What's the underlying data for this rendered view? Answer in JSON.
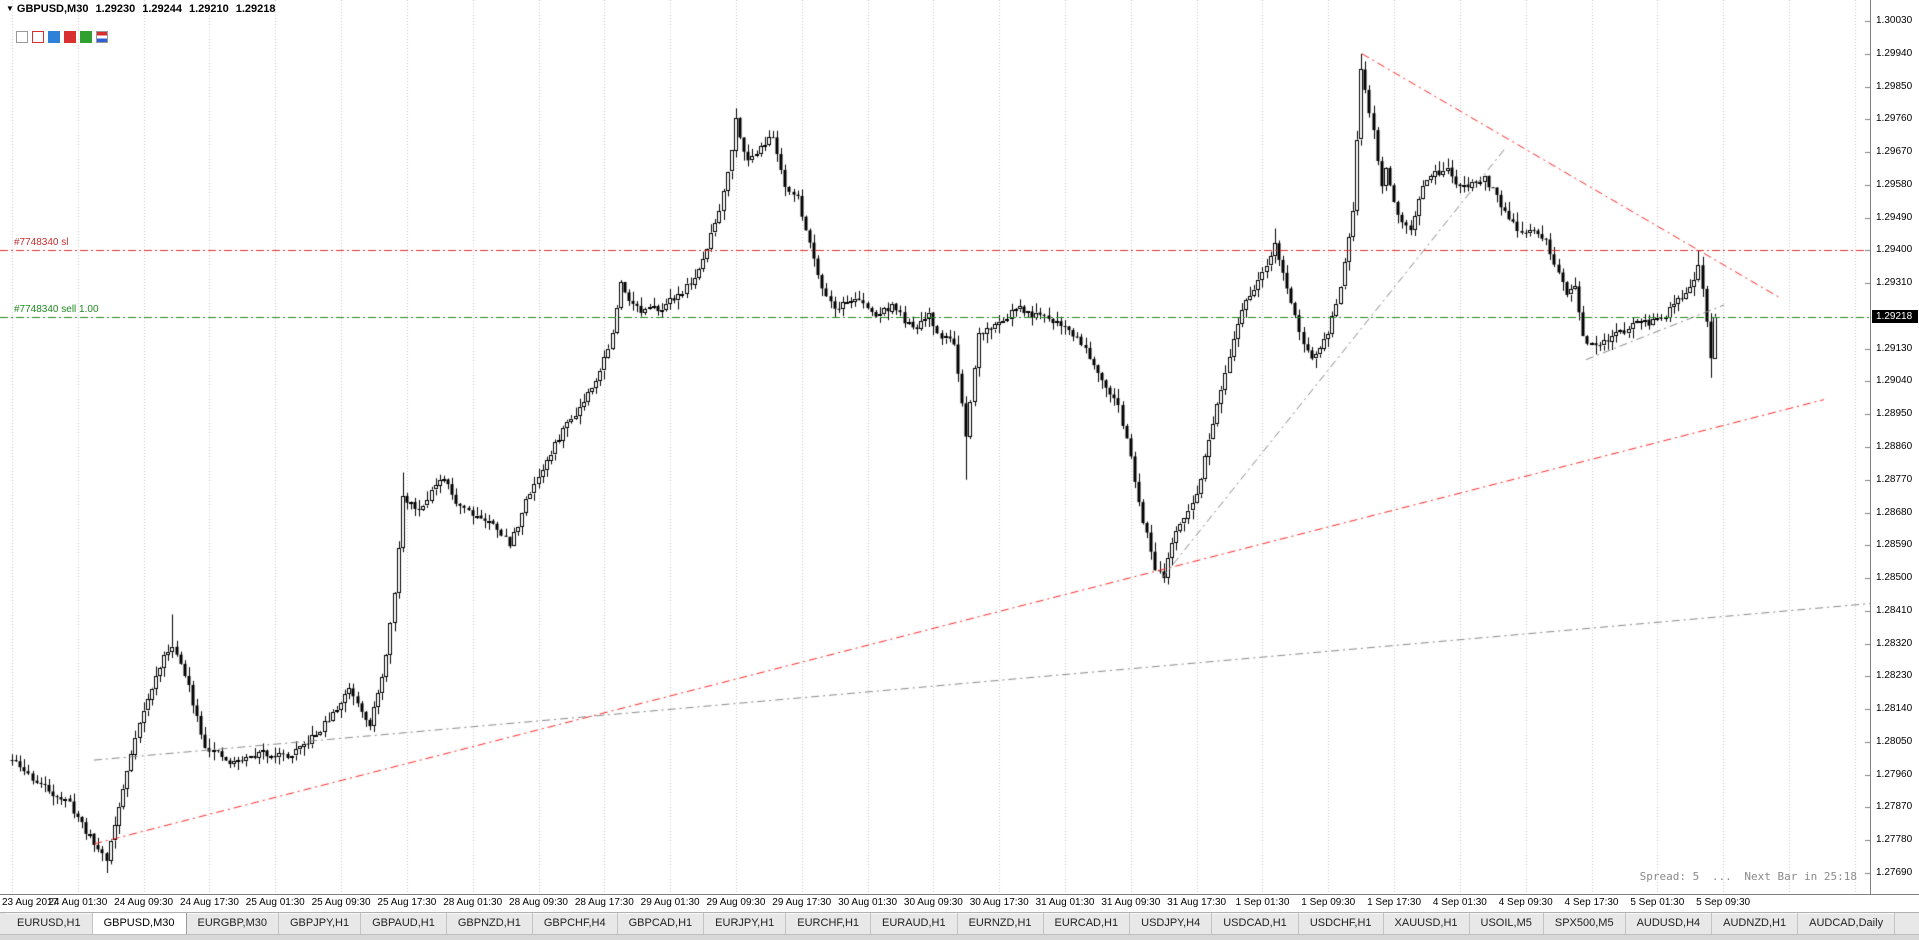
{
  "header": {
    "one_click_arrow_glyph": "▼",
    "symbol_period": "GBPUSD,M30",
    "open": "1.29230",
    "high": "1.29244",
    "low": "1.29210",
    "close": "1.29218"
  },
  "toolbar": {
    "swatches": [
      {
        "name": "white-empty",
        "fill": "#ffffff",
        "border": "#9a9a9a"
      },
      {
        "name": "red-outline",
        "fill": "#ffffff",
        "border": "#d83030"
      },
      {
        "name": "blue",
        "fill": "#2f80d8",
        "border": "#2f80d8"
      },
      {
        "name": "red",
        "fill": "#d83030",
        "border": "#d83030"
      },
      {
        "name": "green",
        "fill": "#30a030",
        "border": "#30a030"
      },
      {
        "name": "flag",
        "fill": "flag",
        "border": "#9a9a9a"
      }
    ]
  },
  "orders": {
    "sl_line": {
      "label": "#7748340 sl",
      "price": 1.294,
      "color": "#e03030",
      "dash": [
        8,
        3,
        2,
        3
      ]
    },
    "sell_line": {
      "label": "#7748340 sell 1.00",
      "price": 1.29218,
      "color": "#1f8a1f",
      "dash": [
        8,
        3,
        2,
        3
      ]
    }
  },
  "status": {
    "spread_label": "Spread: 5",
    "separator": "...",
    "next_bar_label": "Next Bar in 25:18"
  },
  "price_axis": {
    "max": 1.3003,
    "min": 1.2769,
    "step": 0.0009,
    "current": "1.29218",
    "labels": [
      "1.30030",
      "1.29940",
      "1.29850",
      "1.29760",
      "1.29670",
      "1.29580",
      "1.29490",
      "1.29400",
      "1.29310",
      "1.29130",
      "1.29040",
      "1.28950",
      "1.28860",
      "1.28770",
      "1.28680",
      "1.28590",
      "1.28500",
      "1.28410",
      "1.28320",
      "1.28230",
      "1.28140",
      "1.28050",
      "1.27960",
      "1.27870",
      "1.27780",
      "1.27690"
    ]
  },
  "time_axis": {
    "labels": [
      "23 Aug 2017",
      "24 Aug 01:30",
      "24 Aug 09:30",
      "24 Aug 17:30",
      "25 Aug 01:30",
      "25 Aug 09:30",
      "25 Aug 17:30",
      "28 Aug 01:30",
      "28 Aug 09:30",
      "28 Aug 17:30",
      "29 Aug 01:30",
      "29 Aug 09:30",
      "29 Aug 17:30",
      "30 Aug 01:30",
      "30 Aug 09:30",
      "30 Aug 17:30",
      "31 Aug 01:30",
      "31 Aug 09:30",
      "31 Aug 17:30",
      "1 Sep 01:30",
      "1 Sep 09:30",
      "1 Sep 17:30",
      "4 Sep 01:30",
      "4 Sep 09:30",
      "4 Sep 17:30",
      "5 Sep 01:30",
      "5 Sep 09:30"
    ]
  },
  "tabs": {
    "active_index": 1,
    "items": [
      "EURUSD,H1",
      "GBPUSD,M30",
      "EURGBP,M30",
      "GBPJPY,H1",
      "GBPAUD,H1",
      "GBPNZD,H1",
      "GBPCHF,H4",
      "GBPCAD,H1",
      "EURJPY,H1",
      "EURCHF,H1",
      "EURAUD,H1",
      "EURNZD,H1",
      "EURCAD,H1",
      "USDJPY,H4",
      "USDCAD,H1",
      "USDCHF,H1",
      "XAUUSD,H1",
      "USOIL,M5",
      "SPX500,M5",
      "AUDUSD,H4",
      "AUDNZD,H1",
      "AUDCAD,Daily"
    ]
  },
  "chart_data": {
    "type": "candlestick",
    "symbol": "GBPUSD",
    "timeframe": "M30",
    "bars": 415,
    "bars_per_time_gridline": 16,
    "last_close": 1.29218,
    "ylim": [
      1.2769,
      1.3003
    ],
    "grid": {
      "vertical_dotted": true,
      "horizontal": false
    },
    "close_path_waypoints": [
      [
        0,
        1.28
      ],
      [
        6,
        1.2794
      ],
      [
        14,
        1.2788
      ],
      [
        20,
        1.2777
      ],
      [
        23,
        1.2773
      ],
      [
        26,
        1.2787
      ],
      [
        30,
        1.2807
      ],
      [
        36,
        1.2826
      ],
      [
        39,
        1.2832
      ],
      [
        43,
        1.282
      ],
      [
        47,
        1.2804
      ],
      [
        53,
        1.2799
      ],
      [
        61,
        1.2802
      ],
      [
        68,
        1.2801
      ],
      [
        74,
        1.2807
      ],
      [
        79,
        1.2814
      ],
      [
        82,
        1.282
      ],
      [
        87,
        1.281
      ],
      [
        90,
        1.2822
      ],
      [
        93,
        1.2845
      ],
      [
        95,
        1.2872
      ],
      [
        99,
        1.2869
      ],
      [
        102,
        1.2874
      ],
      [
        105,
        1.2877
      ],
      [
        108,
        1.2871
      ],
      [
        112,
        1.2868
      ],
      [
        118,
        1.2864
      ],
      [
        121,
        1.2859
      ],
      [
        126,
        1.2874
      ],
      [
        131,
        1.2884
      ],
      [
        134,
        1.2891
      ],
      [
        138,
        1.2897
      ],
      [
        143,
        1.2907
      ],
      [
        146,
        1.2917
      ],
      [
        148,
        1.2931
      ],
      [
        150,
        1.2927
      ],
      [
        153,
        1.2923
      ],
      [
        159,
        1.2925
      ],
      [
        164,
        1.293
      ],
      [
        167,
        1.2934
      ],
      [
        172,
        1.2951
      ],
      [
        175,
        1.2968
      ],
      [
        176,
        1.2976
      ],
      [
        179,
        1.2964
      ],
      [
        182,
        1.2969
      ],
      [
        185,
        1.2971
      ],
      [
        188,
        1.2958
      ],
      [
        191,
        1.2954
      ],
      [
        194,
        1.2942
      ],
      [
        197,
        1.293
      ],
      [
        200,
        1.2924
      ],
      [
        205,
        1.2927
      ],
      [
        210,
        1.2922
      ],
      [
        214,
        1.2925
      ],
      [
        219,
        1.2918
      ],
      [
        223,
        1.2922
      ],
      [
        225,
        1.2917
      ],
      [
        229,
        1.2915
      ],
      [
        232,
        1.2888
      ],
      [
        235,
        1.2917
      ],
      [
        240,
        1.292
      ],
      [
        244,
        1.2924
      ],
      [
        249,
        1.2922
      ],
      [
        255,
        1.292
      ],
      [
        260,
        1.2915
      ],
      [
        264,
        1.2907
      ],
      [
        269,
        1.2897
      ],
      [
        272,
        1.2883
      ],
      [
        275,
        1.2866
      ],
      [
        278,
        1.2853
      ],
      [
        280,
        1.2851
      ],
      [
        282,
        1.286
      ],
      [
        285,
        1.2866
      ],
      [
        288,
        1.2873
      ],
      [
        290,
        1.2883
      ],
      [
        293,
        1.2897
      ],
      [
        296,
        1.291
      ],
      [
        299,
        1.2924
      ],
      [
        302,
        1.293
      ],
      [
        305,
        1.2935
      ],
      [
        307,
        1.2942
      ],
      [
        310,
        1.293
      ],
      [
        313,
        1.2917
      ],
      [
        316,
        1.291
      ],
      [
        318,
        1.2913
      ],
      [
        320,
        1.2917
      ],
      [
        323,
        1.293
      ],
      [
        326,
        1.295
      ],
      [
        328,
        1.299
      ],
      [
        330,
        1.2978
      ],
      [
        331,
        1.2974
      ],
      [
        333,
        1.2957
      ],
      [
        334,
        1.2962
      ],
      [
        337,
        1.295
      ],
      [
        340,
        1.2946
      ],
      [
        343,
        1.2957
      ],
      [
        346,
        1.2961
      ],
      [
        349,
        1.2962
      ],
      [
        352,
        1.2957
      ],
      [
        355,
        1.2958
      ],
      [
        358,
        1.296
      ],
      [
        361,
        1.2955
      ],
      [
        364,
        1.2948
      ],
      [
        367,
        1.2945
      ],
      [
        370,
        1.2946
      ],
      [
        373,
        1.2942
      ],
      [
        376,
        1.2933
      ],
      [
        378,
        1.2928
      ],
      [
        380,
        1.2931
      ],
      [
        382,
        1.2916
      ],
      [
        385,
        1.2913
      ],
      [
        389,
        1.2916
      ],
      [
        392,
        1.2918
      ],
      [
        395,
        1.2921
      ],
      [
        398,
        1.292
      ],
      [
        401,
        1.2921
      ],
      [
        404,
        1.2925
      ],
      [
        407,
        1.2928
      ],
      [
        410,
        1.2935
      ],
      [
        411,
        1.293
      ],
      [
        413,
        1.291
      ],
      [
        414,
        1.29218
      ]
    ],
    "wick_extremes": [
      [
        23,
        "low",
        1.2769
      ],
      [
        39,
        "high",
        1.284
      ],
      [
        95,
        "high",
        1.2879
      ],
      [
        176,
        "high",
        1.2979
      ],
      [
        232,
        "low",
        1.2877
      ],
      [
        280,
        "low",
        1.285
      ],
      [
        307,
        "high",
        1.2946
      ],
      [
        328,
        "high",
        1.2994
      ],
      [
        410,
        "high",
        1.294
      ],
      [
        413,
        "low",
        1.2905
      ]
    ],
    "trendlines": [
      {
        "name": "ascending-support-red",
        "color": "#ff2a2a",
        "dash": [
          8,
          4,
          2,
          4
        ],
        "b1": 20.0,
        "p1": 1.2777,
        "b2": 440.5,
        "p2": 1.2899
      },
      {
        "name": "descending-resistance-red",
        "color": "#ff2a2a",
        "dash": [
          8,
          4,
          2,
          4
        ],
        "b1": 328.2,
        "p1": 1.2994,
        "b2": 429.8,
        "p2": 1.2927
      },
      {
        "name": "steep-ascending-gray",
        "color": "#8a8a8a",
        "dash": [
          8,
          4,
          2,
          4
        ],
        "b1": 279.6,
        "p1": 1.285,
        "b2": 363.0,
        "p2": 1.2968
      },
      {
        "name": "shallow-ascending-gray",
        "color": "#8a8a8a",
        "dash": [
          8,
          4,
          2,
          4
        ],
        "b1": 19.9,
        "p1": 1.28,
        "b2": 451.7,
        "p2": 1.2843
      },
      {
        "name": "short-ascending-gray",
        "color": "#8a8a8a",
        "dash": [
          8,
          4,
          2,
          4
        ],
        "b1": 382.7,
        "p1": 1.291,
        "b2": 416.2,
        "p2": 1.2925
      }
    ]
  }
}
